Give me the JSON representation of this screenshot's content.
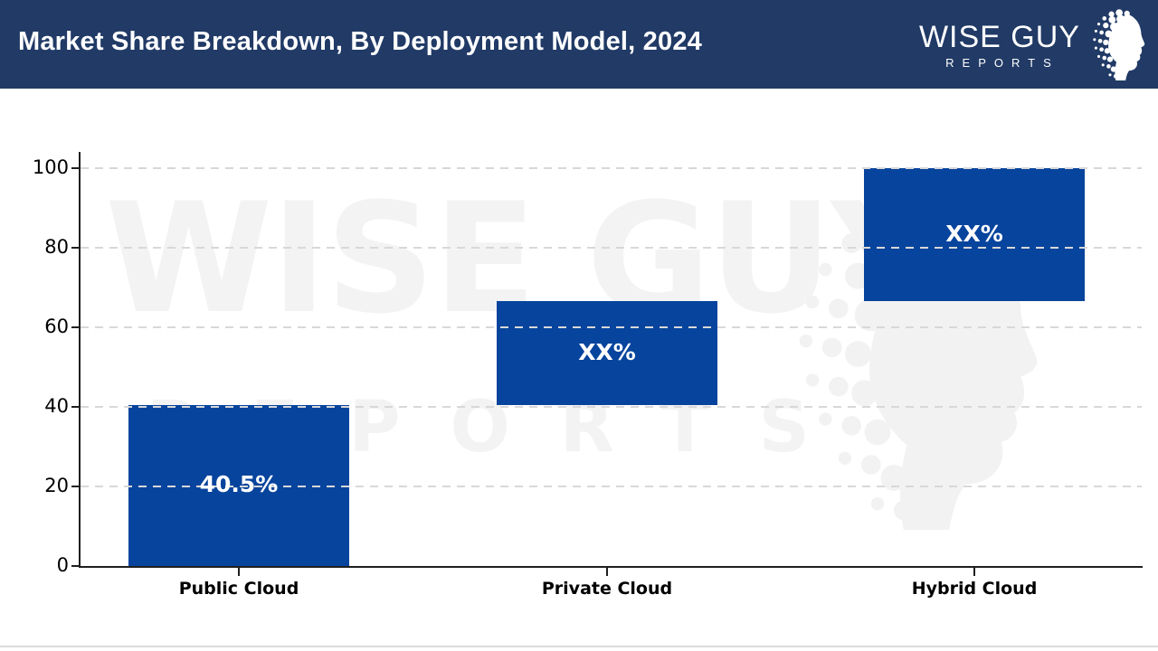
{
  "header": {
    "title": "Market Share Breakdown, By Deployment Model, 2024",
    "bg_color": "#213A66",
    "logo": {
      "wordmark": "WISE GUY",
      "subtext": "REPORTS"
    }
  },
  "watermark": {
    "line1": "WISE GUY",
    "line2": "REPORTS"
  },
  "chart_data": {
    "type": "bar",
    "variant": "floating-segment (waterfall-style market share)",
    "title": "Market Share Breakdown, By Deployment Model, 2024",
    "categories": [
      "Public Cloud",
      "Private Cloud",
      "Hybrid Cloud"
    ],
    "bars": [
      {
        "category": "Public Cloud",
        "label": "40.5%",
        "start": 0,
        "end": 40.5
      },
      {
        "category": "Private Cloud",
        "label": "XX%",
        "start": 40.5,
        "end": 66.5
      },
      {
        "category": "Hybrid Cloud",
        "label": "XX%",
        "start": 66.5,
        "end": 100
      }
    ],
    "bar_labels": [
      "40.5%",
      "XX%",
      "XX%"
    ],
    "y_ticks": [
      0,
      20,
      40,
      60,
      80,
      100
    ],
    "ylim": [
      0,
      104
    ],
    "xlabel": "",
    "ylabel": "",
    "grid": "horizontal dashed, drawn over bars",
    "legend": "none",
    "bar_color": "#07449D",
    "grid_color": "#D8D8D8",
    "axis_color": "#1f1f1f"
  }
}
